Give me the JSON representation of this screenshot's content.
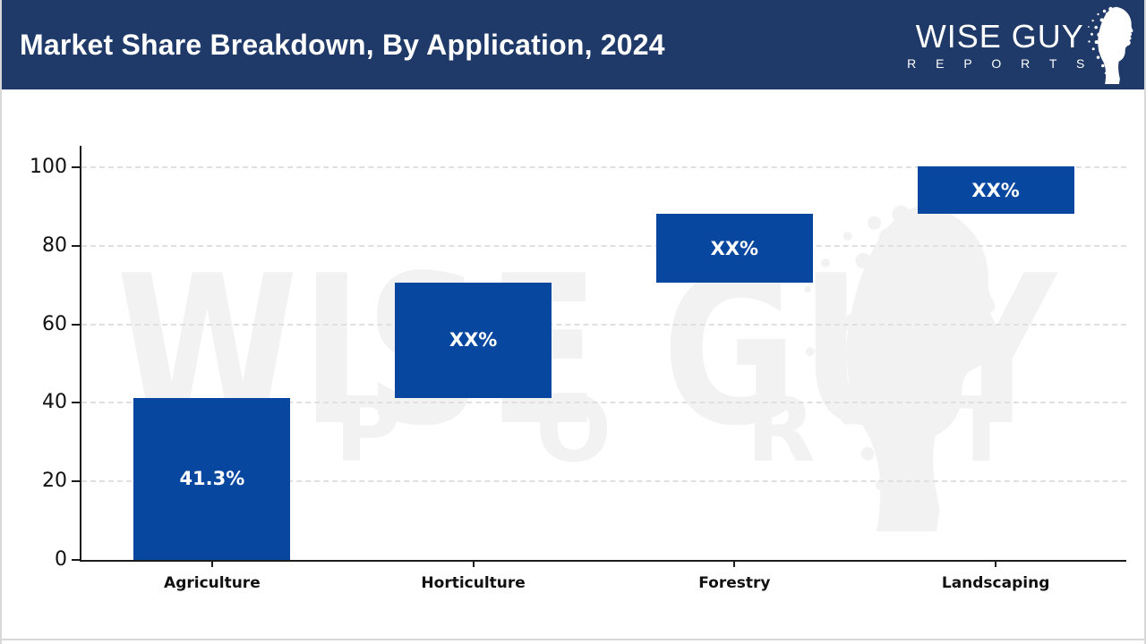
{
  "header": {
    "title": "Market Share Breakdown, By Application, 2024",
    "logo": {
      "name": "WISE GUY",
      "subtitle": "R E P O R T S"
    }
  },
  "watermark": {
    "line1": "WISE GUY",
    "line2": "P O R T S"
  },
  "chart_data": {
    "type": "bar",
    "subtype": "waterfall",
    "title": "Market Share Breakdown, By Application, 2024",
    "categories": [
      "Agriculture",
      "Horticulture",
      "Forestry",
      "Landscaping"
    ],
    "bars": [
      {
        "category": "Agriculture",
        "start": 0,
        "end": 41.3,
        "label": "41.3%"
      },
      {
        "category": "Horticulture",
        "start": 41.3,
        "end": 70.6,
        "label": "XX%"
      },
      {
        "category": "Forestry",
        "start": 70.6,
        "end": 88.1,
        "label": "XX%"
      },
      {
        "category": "Landscaping",
        "start": 88.1,
        "end": 100.2,
        "label": "XX%"
      }
    ],
    "yticks": [
      0,
      20,
      40,
      60,
      80,
      100
    ],
    "ylim": [
      0,
      105.5
    ],
    "xlabel": "",
    "ylabel": "",
    "grid": "horizontal-dashed",
    "legend": "none",
    "bar_color": "#08479f"
  },
  "colors": {
    "header_bg": "#1f3a68",
    "bar": "#08479f",
    "grid": "#e0e0e0",
    "axis": "#1c1c1c",
    "watermark": "#f2f2f2",
    "page_border": "#d8d8d8"
  }
}
